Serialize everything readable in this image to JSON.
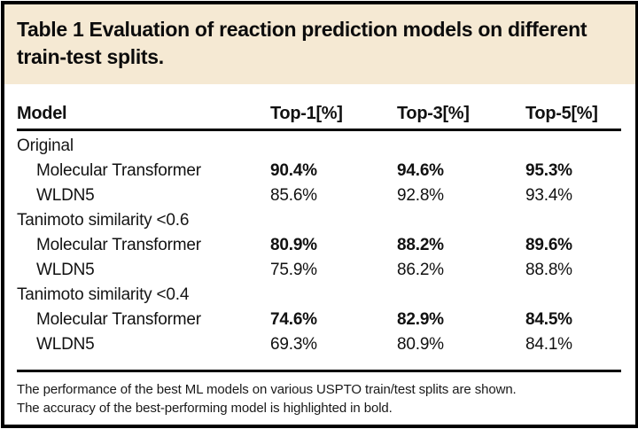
{
  "colors": {
    "title_band_background": "#f5e9d3",
    "border": "#000000",
    "text": "#111111"
  },
  "header": {
    "title": "Table 1 Evaluation of reaction prediction models on different train-test splits."
  },
  "table": {
    "columns": [
      "Model",
      "Top-1[%]",
      "Top-3[%]",
      "Top-5[%]"
    ],
    "rows": [
      {
        "kind": "group",
        "label": "Original"
      },
      {
        "kind": "data",
        "model": "Molecular Transformer",
        "top1": "90.4%",
        "top3": "94.6%",
        "top5": "95.3%",
        "bold": true
      },
      {
        "kind": "data",
        "model": "WLDN5",
        "top1": "85.6%",
        "top3": "92.8%",
        "top5": "93.4%",
        "bold": false
      },
      {
        "kind": "group",
        "label": "Tanimoto similarity <0.6"
      },
      {
        "kind": "data",
        "model": "Molecular Transformer",
        "top1": "80.9%",
        "top3": "88.2%",
        "top5": "89.6%",
        "bold": true
      },
      {
        "kind": "data",
        "model": "WLDN5",
        "top1": "75.9%",
        "top3": "86.2%",
        "top5": "88.8%",
        "bold": false
      },
      {
        "kind": "group",
        "label": "Tanimoto similarity <0.4"
      },
      {
        "kind": "data",
        "model": "Molecular Transformer",
        "top1": "74.6%",
        "top3": "82.9%",
        "top5": "84.5%",
        "bold": true
      },
      {
        "kind": "data",
        "model": "WLDN5",
        "top1": "69.3%",
        "top3": "80.9%",
        "top5": "84.1%",
        "bold": false
      }
    ]
  },
  "chart_data": {
    "type": "table",
    "title": "Table 1 Evaluation of reaction prediction models on different train-test splits.",
    "columns": [
      "Model",
      "Top-1[%]",
      "Top-3[%]",
      "Top-5[%]"
    ],
    "groups": [
      {
        "group": "Original",
        "series": [
          {
            "name": "Molecular Transformer",
            "values": [
              90.4,
              94.6,
              95.3
            ],
            "bold": true
          },
          {
            "name": "WLDN5",
            "values": [
              85.6,
              92.8,
              93.4
            ],
            "bold": false
          }
        ]
      },
      {
        "group": "Tanimoto similarity <0.6",
        "series": [
          {
            "name": "Molecular Transformer",
            "values": [
              80.9,
              88.2,
              89.6
            ],
            "bold": true
          },
          {
            "name": "WLDN5",
            "values": [
              75.9,
              86.2,
              88.8
            ],
            "bold": false
          }
        ]
      },
      {
        "group": "Tanimoto similarity <0.4",
        "series": [
          {
            "name": "Molecular Transformer",
            "values": [
              74.6,
              82.9,
              84.5
            ],
            "bold": true
          },
          {
            "name": "WLDN5",
            "values": [
              69.3,
              80.9,
              84.1
            ],
            "bold": false
          }
        ]
      }
    ]
  },
  "footnote": {
    "line1": "The performance of the best ML models on various USPTO train/test splits are shown.",
    "line2": "The accuracy of the best-performing model is highlighted in bold."
  }
}
